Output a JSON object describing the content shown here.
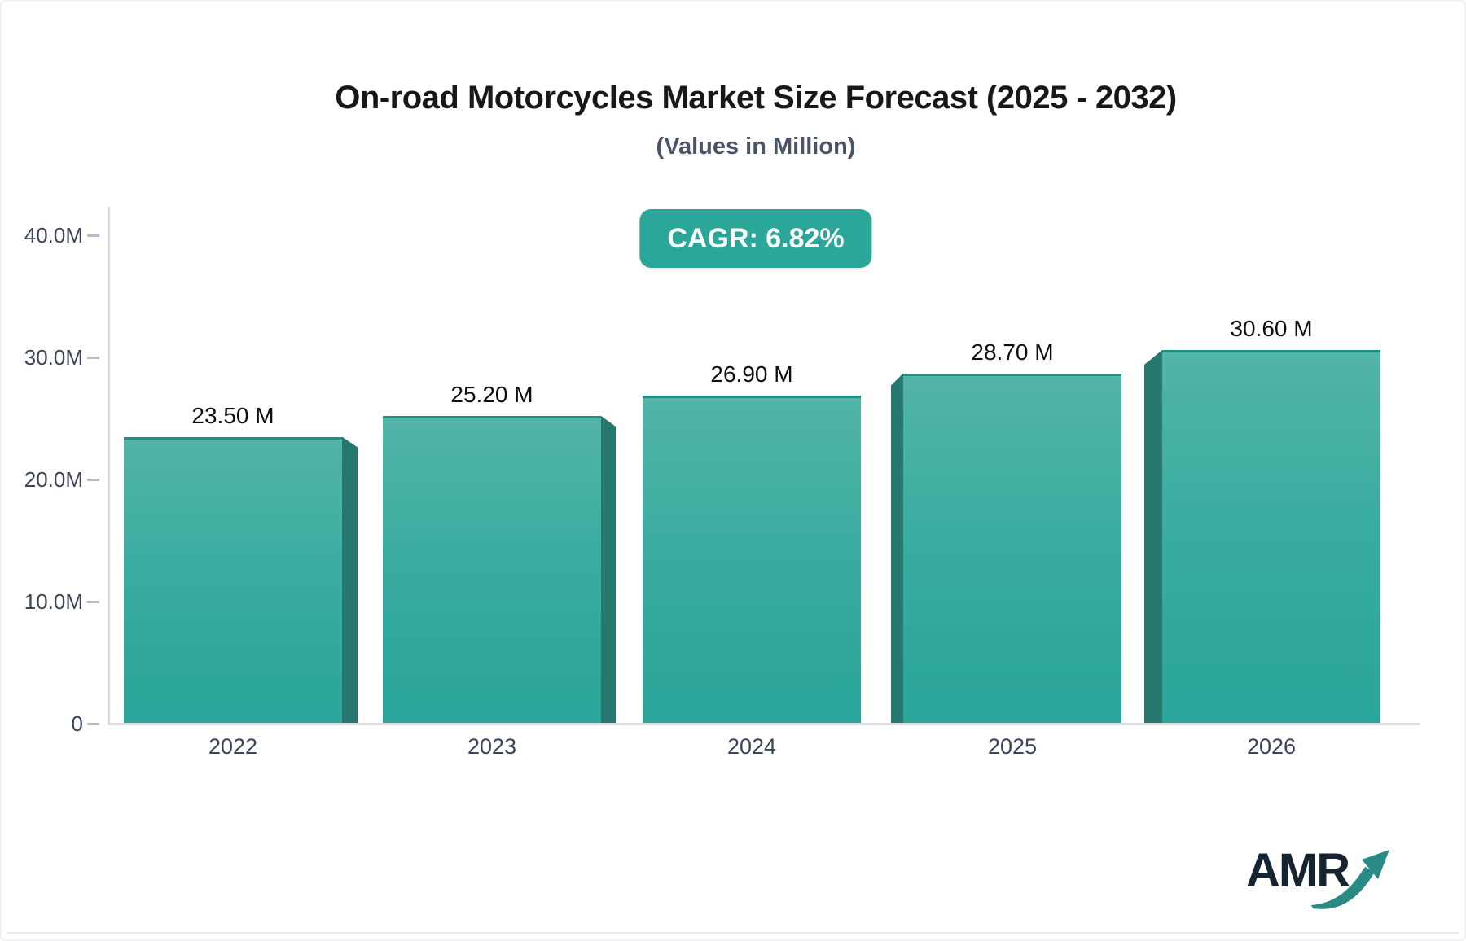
{
  "header": {
    "title": "On-road Motorcycles Market Size Forecast (2025 - 2032)",
    "subtitle": "(Values in Million)",
    "cagr_label": "CAGR: 6.82%"
  },
  "logo": {
    "text": "AMR"
  },
  "colors": {
    "badge_background": "#2ba79a",
    "bar_gradient_top": "#53b4a8",
    "bar_gradient_bottom": "#2aa599",
    "bar_top_edge": "#1b9287",
    "bar_3d_side": "#26786e",
    "axis_line": "#d9dce1",
    "tick_dash": "#b7bec9",
    "axis_text": "#3c4557",
    "value_text": "#0e0e0e",
    "logo_text": "#152430",
    "logo_arrow": "#2b8b84"
  },
  "chart_data": {
    "type": "bar",
    "title": "On-road Motorcycles Market Size Forecast (2025 - 2032)",
    "subtitle": "(Values in Million)",
    "cagr": "6.82%",
    "categories": [
      "2022",
      "2023",
      "2024",
      "2025",
      "2026"
    ],
    "values": [
      23.5,
      25.2,
      26.9,
      28.7,
      30.6
    ],
    "value_labels": [
      "23.50 M",
      "25.20 M",
      "26.90 M",
      "28.70 M",
      "30.60 M"
    ],
    "xlabel": "",
    "ylabel": "",
    "ylim": [
      0,
      40
    ],
    "yticks": [
      {
        "label": "40.0M",
        "value": 40
      },
      {
        "label": "30.0M",
        "value": 30
      },
      {
        "label": "20.0M",
        "value": 20
      },
      {
        "label": "10.0M",
        "value": 10
      },
      {
        "label": "0",
        "value": 0
      }
    ],
    "grid": false,
    "legend": false
  }
}
